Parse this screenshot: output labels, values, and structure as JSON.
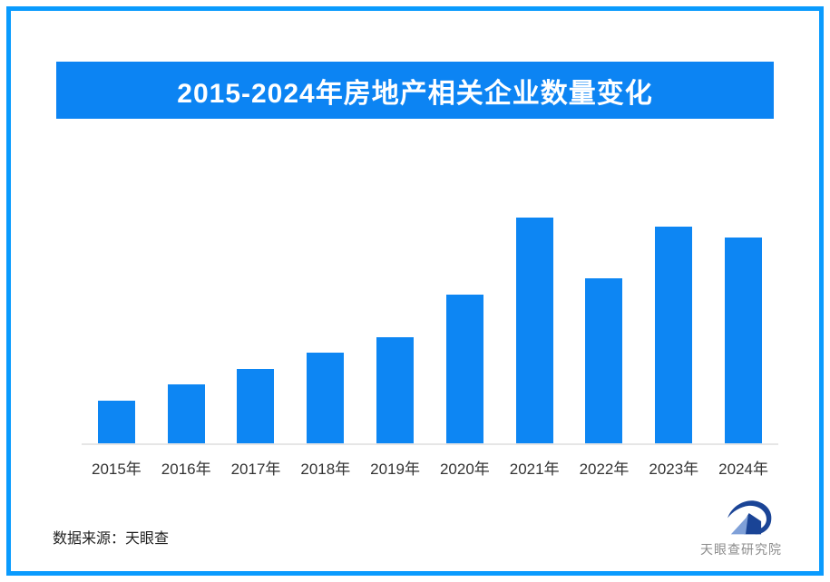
{
  "page": {
    "border_color": "#0a9bfe",
    "background": "#ffffff"
  },
  "header": {
    "title": "2015-2024年房地产相关企业数量变化",
    "banner_color": "#0c84f3",
    "title_color": "#ffffff"
  },
  "chart_data": {
    "type": "bar",
    "title": "2015-2024年房地产相关企业数量变化",
    "categories": [
      "2015年",
      "2016年",
      "2017年",
      "2018年",
      "2019年",
      "2020年",
      "2021年",
      "2022年",
      "2023年",
      "2024年"
    ],
    "values": [
      19,
      26,
      33,
      40,
      47,
      66,
      100,
      73,
      96,
      91
    ],
    "value_note": "relative bar heights in % of tallest bar (2021); no numeric y-axis or data labels shown in image",
    "xlabel": "",
    "ylabel": "",
    "ylim": [
      0,
      100
    ],
    "grid": false,
    "legend": "none",
    "data_labels": false,
    "bar_color": "#0d86f3",
    "axis_line_color": "#e6e6e6"
  },
  "footer": {
    "source_label": "数据来源：天眼查",
    "logo": {
      "icon_name": "tianyancha-logo-icon",
      "text": "天眼查研究院",
      "navy_color": "#1a4496",
      "light_blue_color": "#7fa0d8",
      "text_color": "#8c8c8c"
    }
  }
}
